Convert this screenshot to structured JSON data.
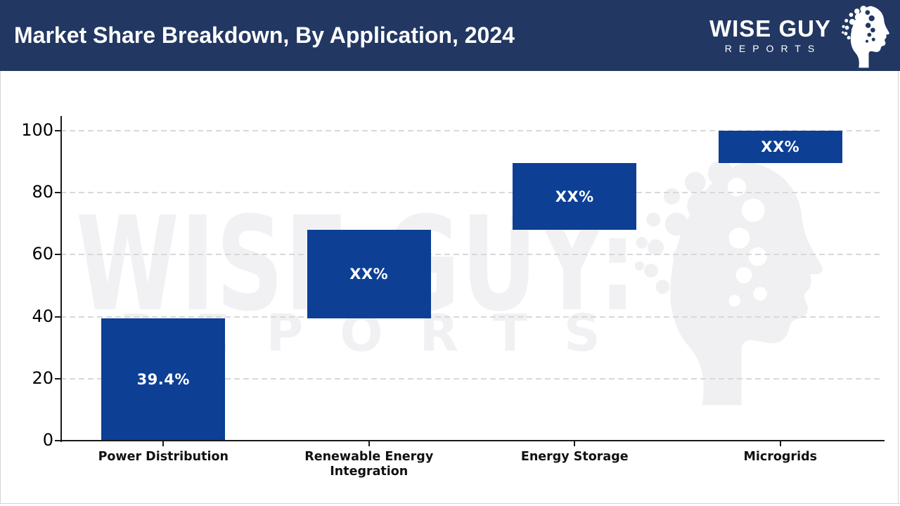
{
  "header": {
    "bg_color": "#223862",
    "title": "Market Share Breakdown, By Application, 2024",
    "logo": {
      "line1": "WISE GUY",
      "line2": "REPORTS"
    }
  },
  "watermark": {
    "line1": "WISE GUY:",
    "line2": "REPORTS"
  },
  "chart_data": {
    "type": "bar",
    "subtype": "waterfall",
    "title": "Market Share Breakdown, By Application, 2024",
    "categories": [
      "Power Distribution",
      "Renewable Energy Integration",
      "Energy Storage",
      "Microgrids"
    ],
    "segments": [
      {
        "category_lines": [
          "Power Distribution"
        ],
        "start": 0,
        "end": 39.4,
        "label": "39.4%"
      },
      {
        "category_lines": [
          "Renewable Energy",
          "Integration"
        ],
        "start": 39.4,
        "end": 68,
        "label": "XX%"
      },
      {
        "category_lines": [
          "Energy Storage"
        ],
        "start": 68,
        "end": 89.5,
        "label": "XX%"
      },
      {
        "category_lines": [
          "Microgrids"
        ],
        "start": 89.5,
        "end": 100,
        "label": "XX%"
      }
    ],
    "yticks": [
      0,
      20,
      40,
      60,
      80,
      100
    ],
    "ylim": [
      0,
      105
    ],
    "xlabel": "",
    "ylabel": "",
    "legend": "none",
    "grid": "horizontal-dashed",
    "bar_color": "#0d3f94",
    "bar_label_color": "#ffffff",
    "grid_color": "#d8d8d8",
    "axis_color": "#1a1a1a"
  }
}
